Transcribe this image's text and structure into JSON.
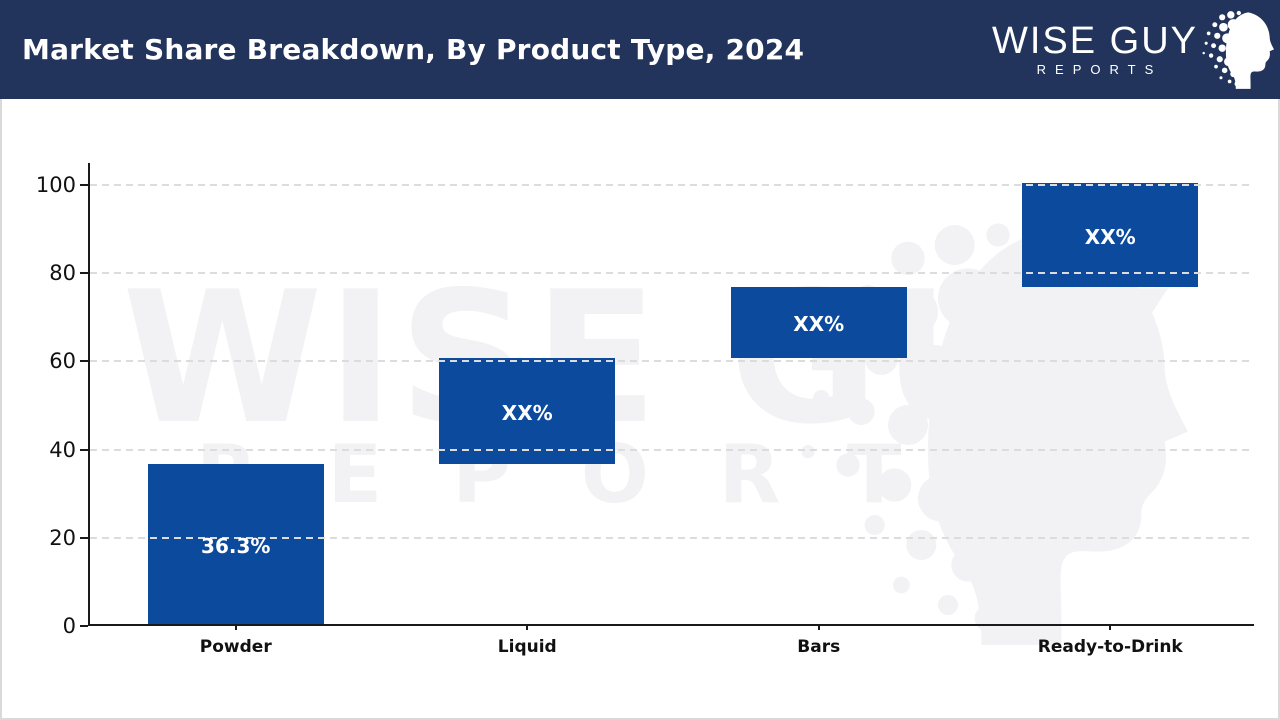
{
  "header": {
    "title": "Market Share Breakdown, By Product Type, 2024",
    "logo": {
      "brand_line1": "WISE GUY",
      "brand_line2": "REPORTS"
    }
  },
  "watermark": {
    "line1": "WISE GUY",
    "line2": "REPORTS"
  },
  "colors": {
    "header_bg": "#22345c",
    "bar_fill": "#0c4a9e",
    "gridline": "#dcdcdc",
    "axis": "#1a1a1a",
    "value_label": "#ffffff",
    "watermark": "#f2f2f4"
  },
  "chart_data": {
    "type": "bar",
    "subtype": "waterfall",
    "title": "Market Share Breakdown, By Product Type, 2024",
    "xlabel": "",
    "ylabel": "",
    "categories": [
      "Powder",
      "Liquid",
      "Bars",
      "Ready-to-Drink"
    ],
    "bars": [
      {
        "label": "Powder",
        "start": 0,
        "end": 36.3,
        "segment": 36.3,
        "value_label": "36.3%"
      },
      {
        "label": "Liquid",
        "start": 36.3,
        "end": 60.4,
        "segment": 24.1,
        "value_label": "XX%"
      },
      {
        "label": "Bars",
        "start": 60.4,
        "end": 76.4,
        "segment": 16.0,
        "value_label": "XX%"
      },
      {
        "label": "Ready-to-Drink",
        "start": 76.4,
        "end": 100,
        "segment": 23.6,
        "value_label": "XX%"
      }
    ],
    "y_ticks": [
      0,
      20,
      40,
      60,
      80,
      100
    ],
    "ylim": [
      0,
      105
    ],
    "grid": "horizontal-dashed-over-bars",
    "legend": "none"
  }
}
